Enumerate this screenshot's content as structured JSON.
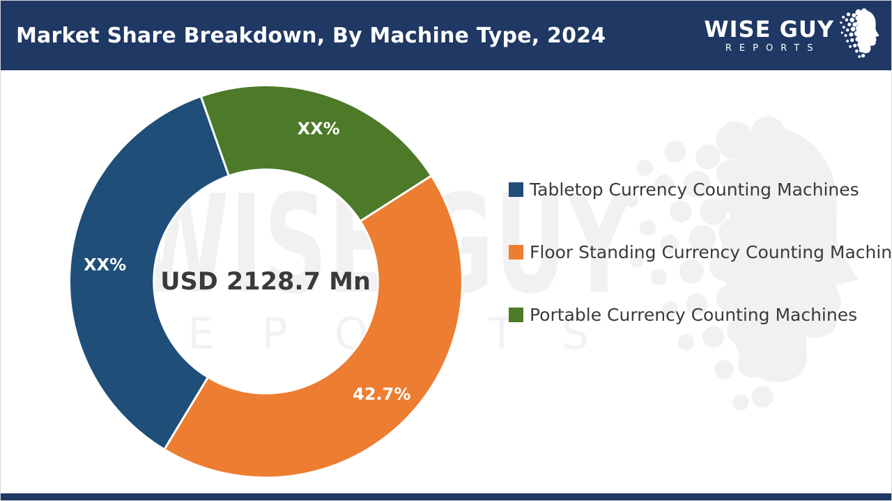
{
  "header": {
    "title": "Market Share Breakdown, By Machine Type, 2024",
    "background": "#1F3864",
    "logo": {
      "line1": "WISE GUY",
      "line2": "REPORTS"
    }
  },
  "watermark": {
    "line1": "WISE GUY",
    "line2": "REPORTS"
  },
  "chart_data": {
    "type": "pie",
    "subtype": "donut",
    "title": "Market Share Breakdown, By Machine Type, 2024",
    "center_label": "USD 2128.7 Mn",
    "start_angle": 109.3,
    "direction": "counterclockwise",
    "inner_radius_ratio": 0.57,
    "legend_position": "right",
    "segments": [
      {
        "name": "Tabletop Currency Counting Machines",
        "value": 36.0,
        "display_label": "XX%",
        "color": "#1F4E79",
        "label_color": "#ffffff"
      },
      {
        "name": "Floor Standing Currency Counting Machines",
        "value": 42.7,
        "display_label": "42.7%",
        "color": "#ED7D31",
        "label_color": "#ffffff"
      },
      {
        "name": "Portable Currency Counting Machines",
        "value": 21.3,
        "display_label": "XX%",
        "color": "#4C7A28",
        "label_color": "#ffffff"
      }
    ]
  },
  "colors": {
    "header_bg": "#1F3864",
    "footer_bg": "#1F3864",
    "text_dark": "#3A3A3A",
    "watermark": "#f1f1f3",
    "page_border": "#d9d9d9"
  }
}
